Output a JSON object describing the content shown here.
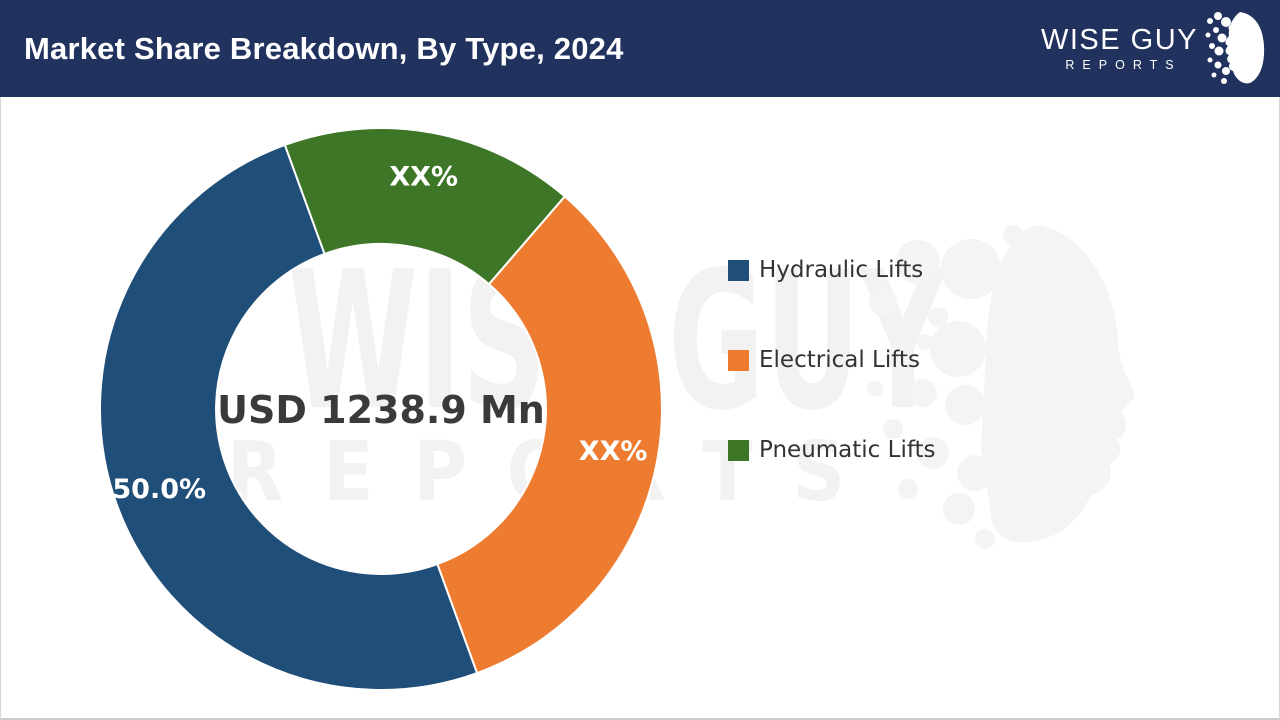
{
  "header": {
    "title": "Market Share Breakdown, By Type, 2024",
    "bg_color": "#22325F",
    "logo": {
      "line1": "WISE GUY",
      "line2": "REPORTS"
    }
  },
  "watermark": {
    "line1": "WISE GUY",
    "line2": "REPORTS"
  },
  "chart_data": {
    "type": "donut",
    "title": "Market Share Breakdown, By Type, 2024",
    "center_label": "USD 1238.9 Mn",
    "start_angle_deg": 340,
    "counterclockwise": true,
    "hole_ratio": 0.587,
    "legend_position": "right",
    "categories": [
      "Hydraulic Lifts",
      "Electrical Lifts",
      "Pneumatic Lifts"
    ],
    "series": [
      {
        "name": "Hydraulic Lifts",
        "value_pct": 50.0,
        "label": "50.0%",
        "color": "#1F4E79"
      },
      {
        "name": "Electrical Lifts",
        "value_pct": 33.1,
        "label": "XX%",
        "color": "#ED7C30"
      },
      {
        "name": "Pneumatic Lifts",
        "value_pct": 16.9,
        "label": "XX%",
        "color": "#3E7627"
      }
    ]
  }
}
